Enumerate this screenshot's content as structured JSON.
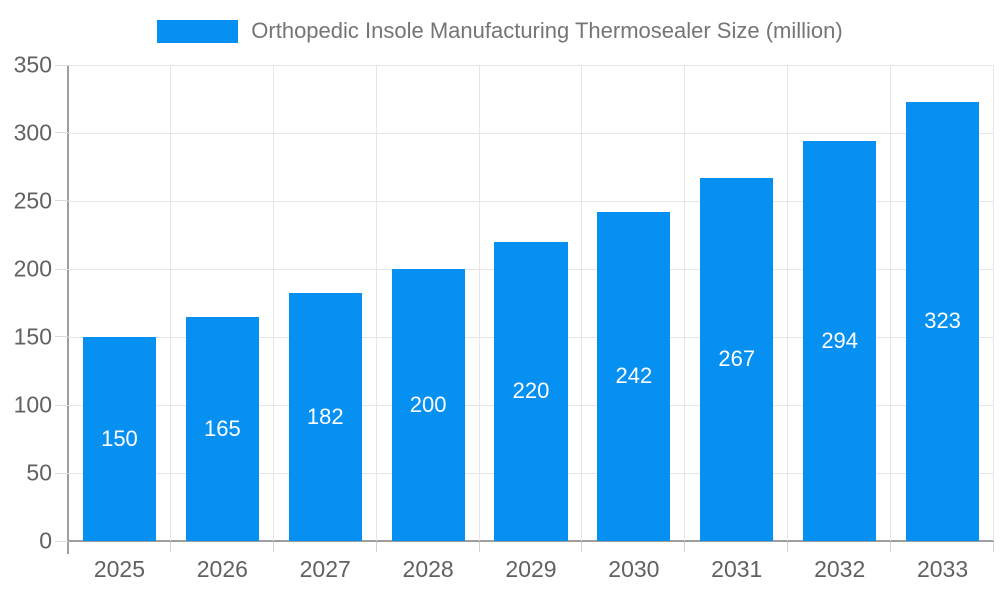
{
  "chart_data": {
    "type": "bar",
    "title": "Orthopedic Insole Manufacturing Thermosealer Size (million)",
    "categories": [
      "2025",
      "2026",
      "2027",
      "2028",
      "2029",
      "2030",
      "2031",
      "2032",
      "2033"
    ],
    "values": [
      150,
      165,
      182,
      200,
      220,
      242,
      267,
      294,
      323
    ],
    "value_labels": [
      "150",
      "165",
      "182",
      "200",
      "220",
      "242",
      "267",
      "294",
      "323"
    ],
    "yticks": [
      0,
      50,
      100,
      150,
      200,
      250,
      300,
      350
    ],
    "ylim": [
      0,
      350
    ],
    "xlabel": "",
    "ylabel": "",
    "grid": true,
    "legend_position": "top-center",
    "colors": {
      "bar": "#0690f2",
      "value_label": "#ffffff",
      "gridline": "#e6e6e6",
      "axis_line": "#9e9e9e",
      "tick_label": "#616161",
      "title": "#757575",
      "background": "#ffffff"
    }
  }
}
